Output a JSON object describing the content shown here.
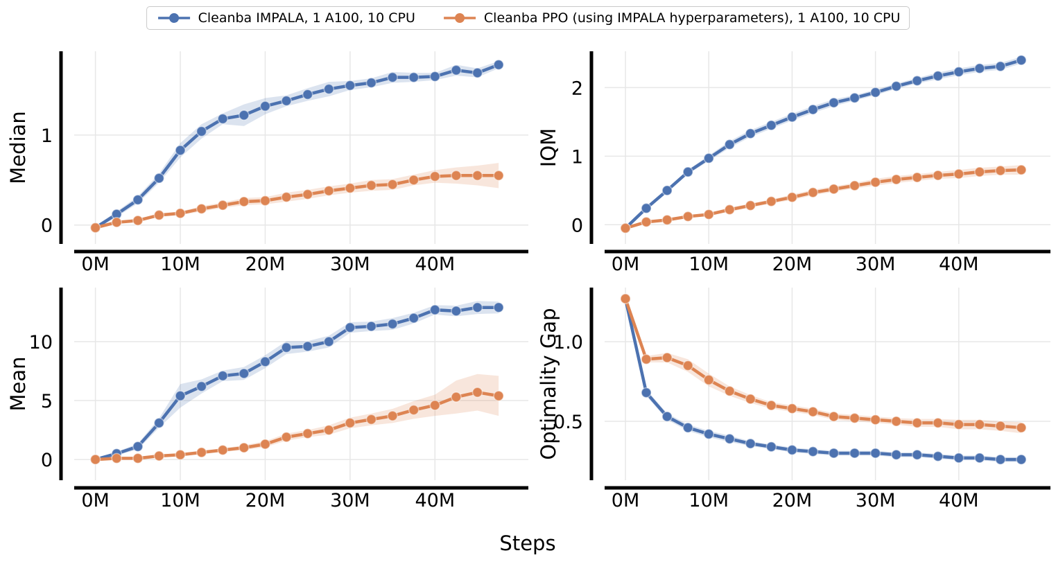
{
  "figure": {
    "xlabel": "Steps",
    "background_color": "#ffffff",
    "grid_color": "#e7e7e7",
    "spine_color": "#000000"
  },
  "legend": {
    "items": [
      {
        "label": "Cleanba IMPALA, 1 A100, 10 CPU",
        "color": "#4c72b0"
      },
      {
        "label": "Cleanba PPO (using IMPALA hyperparameters), 1 A100, 10 CPU",
        "color": "#dd8452"
      }
    ]
  },
  "chart_data": [
    {
      "type": "line",
      "ylabel": "Median",
      "x_unit": "millions of steps",
      "x": [
        0,
        2.5,
        5,
        7.5,
        10,
        12.5,
        15,
        17.5,
        20,
        22.5,
        25,
        27.5,
        30,
        32.5,
        35,
        37.5,
        40,
        42.5,
        45,
        47.5
      ],
      "xticks": [
        {
          "v": 0,
          "label": "0M"
        },
        {
          "v": 10,
          "label": "10M"
        },
        {
          "v": 20,
          "label": "20M"
        },
        {
          "v": 30,
          "label": "30M"
        },
        {
          "v": 40,
          "label": "40M"
        }
      ],
      "xlim": [
        -2.5,
        51
      ],
      "yticks": [
        {
          "v": 0,
          "label": "0"
        },
        {
          "v": 1,
          "label": "1"
        }
      ],
      "ylim": [
        -0.21,
        1.93
      ],
      "series": [
        {
          "name": "Cleanba IMPALA, 1 A100, 10 CPU",
          "color": "#4c72b0",
          "values": [
            -0.03,
            0.12,
            0.28,
            0.52,
            0.83,
            1.04,
            1.18,
            1.22,
            1.32,
            1.38,
            1.45,
            1.51,
            1.55,
            1.58,
            1.64,
            1.64,
            1.65,
            1.72,
            1.69,
            1.78
          ],
          "band": [
            0.02,
            0.03,
            0.04,
            0.05,
            0.08,
            0.08,
            0.06,
            0.12,
            0.09,
            0.06,
            0.07,
            0.08,
            0.05,
            0.05,
            0.06,
            0.05,
            0.04,
            0.06,
            0.05,
            0.04
          ]
        },
        {
          "name": "Cleanba PPO (using IMPALA hyperparameters), 1 A100, 10 CPU",
          "color": "#dd8452",
          "values": [
            -0.03,
            0.03,
            0.05,
            0.11,
            0.13,
            0.18,
            0.22,
            0.26,
            0.27,
            0.31,
            0.34,
            0.38,
            0.41,
            0.44,
            0.45,
            0.5,
            0.54,
            0.55,
            0.55,
            0.55
          ],
          "band": [
            0.01,
            0.01,
            0.01,
            0.02,
            0.02,
            0.03,
            0.03,
            0.04,
            0.04,
            0.05,
            0.05,
            0.05,
            0.05,
            0.06,
            0.06,
            0.06,
            0.07,
            0.09,
            0.11,
            0.14
          ]
        }
      ]
    },
    {
      "type": "line",
      "ylabel": "IQM",
      "x_unit": "millions of steps",
      "x": [
        0,
        2.5,
        5,
        7.5,
        10,
        12.5,
        15,
        17.5,
        20,
        22.5,
        25,
        27.5,
        30,
        32.5,
        35,
        37.5,
        40,
        42.5,
        45,
        47.5
      ],
      "xticks": [
        {
          "v": 0,
          "label": "0M"
        },
        {
          "v": 10,
          "label": "10M"
        },
        {
          "v": 20,
          "label": "20M"
        },
        {
          "v": 30,
          "label": "30M"
        },
        {
          "v": 40,
          "label": "40M"
        }
      ],
      "xlim": [
        -2.5,
        51
      ],
      "yticks": [
        {
          "v": 0,
          "label": "0"
        },
        {
          "v": 1,
          "label": "1"
        },
        {
          "v": 2,
          "label": "2"
        }
      ],
      "ylim": [
        -0.28,
        2.53
      ],
      "series": [
        {
          "name": "Cleanba IMPALA, 1 A100, 10 CPU",
          "color": "#4c72b0",
          "values": [
            -0.05,
            0.24,
            0.5,
            0.77,
            0.97,
            1.17,
            1.33,
            1.45,
            1.57,
            1.68,
            1.78,
            1.85,
            1.93,
            2.02,
            2.1,
            2.17,
            2.23,
            2.28,
            2.31,
            2.4
          ],
          "band": [
            0.02,
            0.03,
            0.03,
            0.03,
            0.04,
            0.05,
            0.05,
            0.05,
            0.05,
            0.05,
            0.05,
            0.04,
            0.04,
            0.04,
            0.04,
            0.05,
            0.05,
            0.05,
            0.05,
            0.05
          ]
        },
        {
          "name": "Cleanba PPO (using IMPALA hyperparameters), 1 A100, 10 CPU",
          "color": "#dd8452",
          "values": [
            -0.05,
            0.04,
            0.07,
            0.12,
            0.15,
            0.22,
            0.28,
            0.34,
            0.4,
            0.47,
            0.52,
            0.57,
            0.62,
            0.66,
            0.69,
            0.72,
            0.74,
            0.77,
            0.79,
            0.8
          ],
          "band": [
            0.01,
            0.01,
            0.02,
            0.02,
            0.02,
            0.03,
            0.03,
            0.03,
            0.04,
            0.04,
            0.04,
            0.04,
            0.05,
            0.05,
            0.05,
            0.05,
            0.06,
            0.06,
            0.06,
            0.07
          ]
        }
      ]
    },
    {
      "type": "line",
      "ylabel": "Mean",
      "x_unit": "millions of steps",
      "x": [
        0,
        2.5,
        5,
        7.5,
        10,
        12.5,
        15,
        17.5,
        20,
        22.5,
        25,
        27.5,
        30,
        32.5,
        35,
        37.5,
        40,
        42.5,
        45,
        47.5
      ],
      "xticks": [
        {
          "v": 0,
          "label": "0M"
        },
        {
          "v": 10,
          "label": "10M"
        },
        {
          "v": 20,
          "label": "20M"
        },
        {
          "v": 30,
          "label": "30M"
        },
        {
          "v": 40,
          "label": "40M"
        }
      ],
      "xlim": [
        -2.5,
        51
      ],
      "yticks": [
        {
          "v": 0,
          "label": "0"
        },
        {
          "v": 5,
          "label": "5"
        },
        {
          "v": 10,
          "label": "10"
        }
      ],
      "ylim": [
        -1.76,
        14.59
      ],
      "series": [
        {
          "name": "Cleanba IMPALA, 1 A100, 10 CPU",
          "color": "#4c72b0",
          "values": [
            0.0,
            0.5,
            1.1,
            3.1,
            5.4,
            6.2,
            7.1,
            7.3,
            8.3,
            9.5,
            9.6,
            10.0,
            11.2,
            11.3,
            11.5,
            12.0,
            12.7,
            12.6,
            12.9,
            12.9
          ],
          "band": [
            0.05,
            0.15,
            0.25,
            0.4,
            1.0,
            0.6,
            0.45,
            0.55,
            0.55,
            0.55,
            0.45,
            0.5,
            0.45,
            0.4,
            0.5,
            0.45,
            0.4,
            0.45,
            0.55,
            0.5
          ]
        },
        {
          "name": "Cleanba PPO (using IMPALA hyperparameters), 1 A100, 10 CPU",
          "color": "#dd8452",
          "values": [
            0.0,
            0.1,
            0.1,
            0.3,
            0.4,
            0.6,
            0.8,
            1.0,
            1.3,
            1.9,
            2.2,
            2.5,
            3.1,
            3.4,
            3.7,
            4.2,
            4.6,
            5.3,
            5.7,
            5.4
          ],
          "band": [
            0.05,
            0.05,
            0.08,
            0.1,
            0.12,
            0.15,
            0.15,
            0.2,
            0.25,
            0.3,
            0.3,
            0.4,
            0.45,
            0.5,
            0.6,
            0.75,
            0.9,
            1.4,
            1.55,
            1.7
          ]
        }
      ]
    },
    {
      "type": "line",
      "ylabel": "Optimality Gap",
      "x_unit": "millions of steps",
      "x": [
        0,
        2.5,
        5,
        7.5,
        10,
        12.5,
        15,
        17.5,
        20,
        22.5,
        25,
        27.5,
        30,
        32.5,
        35,
        37.5,
        40,
        42.5,
        45,
        47.5
      ],
      "xticks": [
        {
          "v": 0,
          "label": "0M"
        },
        {
          "v": 10,
          "label": "10M"
        },
        {
          "v": 20,
          "label": "20M"
        },
        {
          "v": 30,
          "label": "30M"
        },
        {
          "v": 40,
          "label": "40M"
        }
      ],
      "xlim": [
        -2.5,
        51
      ],
      "yticks": [
        {
          "v": 0.5,
          "label": "0.5"
        },
        {
          "v": 1.0,
          "label": "1.0"
        }
      ],
      "ylim": [
        0.13,
        1.34
      ],
      "series": [
        {
          "name": "Cleanba IMPALA, 1 A100, 10 CPU",
          "color": "#4c72b0",
          "values": [
            1.27,
            0.68,
            0.53,
            0.46,
            0.42,
            0.39,
            0.36,
            0.34,
            0.32,
            0.31,
            0.3,
            0.3,
            0.3,
            0.29,
            0.29,
            0.28,
            0.27,
            0.27,
            0.26,
            0.26
          ],
          "band": [
            0.01,
            0.02,
            0.02,
            0.02,
            0.02,
            0.02,
            0.015,
            0.015,
            0.015,
            0.015,
            0.015,
            0.015,
            0.015,
            0.015,
            0.015,
            0.015,
            0.015,
            0.015,
            0.015,
            0.015
          ]
        },
        {
          "name": "Cleanba PPO (using IMPALA hyperparameters), 1 A100, 10 CPU",
          "color": "#dd8452",
          "values": [
            1.27,
            0.89,
            0.9,
            0.85,
            0.76,
            0.69,
            0.64,
            0.6,
            0.58,
            0.56,
            0.53,
            0.52,
            0.51,
            0.5,
            0.49,
            0.49,
            0.48,
            0.48,
            0.47,
            0.46
          ],
          "band": [
            0.01,
            0.02,
            0.03,
            0.04,
            0.04,
            0.03,
            0.025,
            0.02,
            0.02,
            0.02,
            0.02,
            0.02,
            0.02,
            0.02,
            0.025,
            0.025,
            0.03,
            0.03,
            0.03,
            0.035
          ]
        }
      ]
    }
  ]
}
